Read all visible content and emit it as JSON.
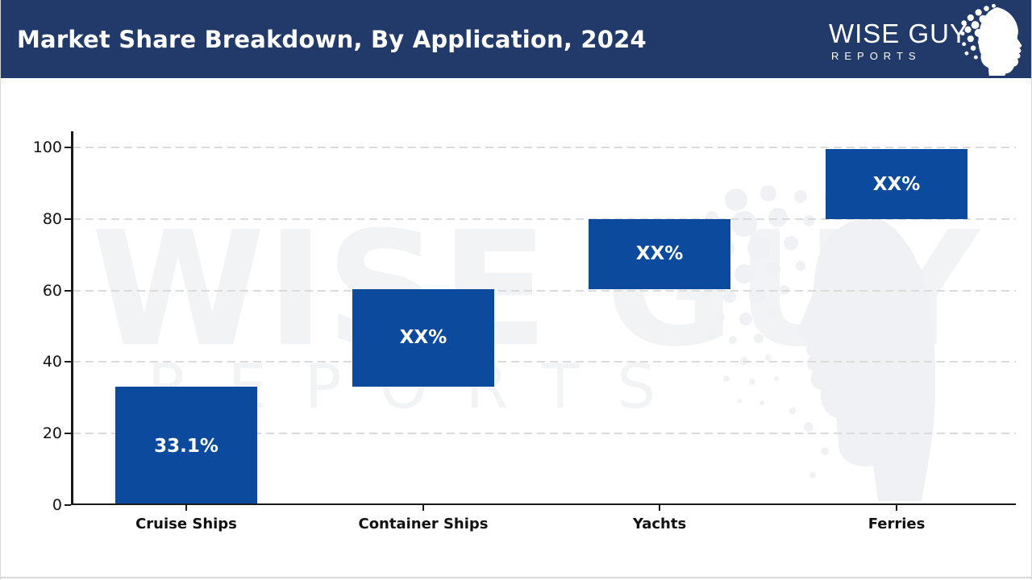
{
  "header": {
    "title": "Market Share Breakdown, By Application, 2024",
    "logo": {
      "wordmark": "WISE GUY",
      "subtext": "REPORTS"
    }
  },
  "watermark": {
    "wordmark": "WISE GUY",
    "subtext": "REPORTS"
  },
  "chart_data": {
    "type": "bar",
    "subtype": "waterfall-segments",
    "title": "Market Share Breakdown, By Application, 2024",
    "categories": [
      "Cruise Ships",
      "Container Ships",
      "Yachts",
      "Ferries"
    ],
    "segments": [
      {
        "category": "Cruise Ships",
        "start": 0,
        "end": 33.1,
        "label": "33.1%"
      },
      {
        "category": "Container Ships",
        "start": 33.1,
        "end": 60.4,
        "label": "XX%"
      },
      {
        "category": "Yachts",
        "start": 60.4,
        "end": 80.0,
        "label": "XX%"
      },
      {
        "category": "Ferries",
        "start": 80.0,
        "end": 99.5,
        "label": "XX%"
      }
    ],
    "xlabel": "",
    "ylabel": "",
    "ylim": [
      0,
      104.5
    ],
    "yticks": [
      0,
      20,
      40,
      60,
      80,
      100
    ],
    "grid": "horizontal-dashed",
    "legend": "none"
  },
  "colors": {
    "header_bg": "#213a69",
    "bar": "#0c4a9d",
    "bar_label": "#ffffff",
    "axis": "#1a1a1a",
    "gridline": "#dbdbdb",
    "watermark": "#f2f3f5",
    "page_bg": "#ffffff"
  }
}
